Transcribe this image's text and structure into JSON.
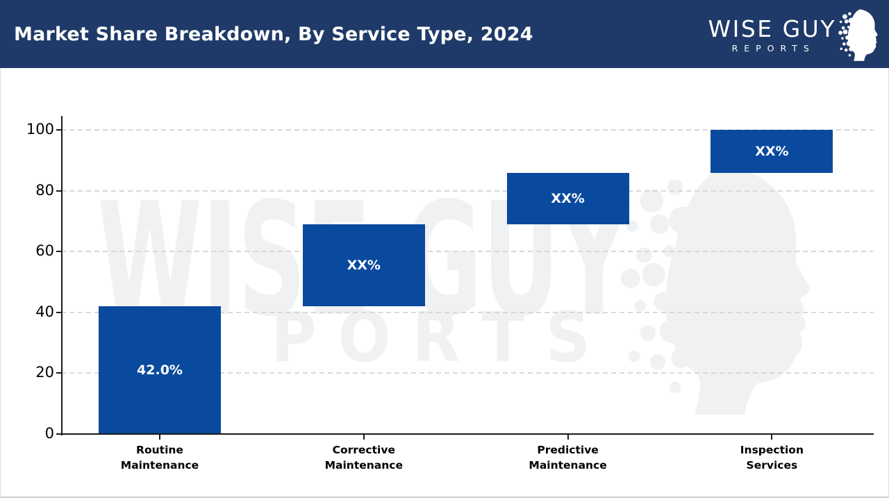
{
  "header": {
    "title": "Market Share Breakdown, By Service Type, 2024",
    "logo": {
      "line1": "WISE GUY",
      "line2": "REPORTS"
    }
  },
  "watermark": {
    "line1": "WISE GUY",
    "line2": "P O R T S"
  },
  "chart_data": {
    "type": "bar",
    "subtype": "waterfall",
    "title": "Market Share Breakdown, By Service Type, 2024",
    "categories": [
      "Routine\nMaintenance",
      "Corrective\nMaintenance",
      "Predictive\nMaintenance",
      "Inspection\nServices"
    ],
    "series": [
      {
        "name": "Market Share %",
        "segments": [
          {
            "category": "Routine Maintenance",
            "start": 0,
            "end": 42,
            "label": "42.0%"
          },
          {
            "category": "Corrective Maintenance",
            "start": 42,
            "end": 69,
            "label": "XX%"
          },
          {
            "category": "Predictive Maintenance",
            "start": 69,
            "end": 86,
            "label": "XX%"
          },
          {
            "category": "Inspection Services",
            "start": 86,
            "end": 100,
            "label": "XX%"
          }
        ]
      }
    ],
    "xlabel": "",
    "ylabel": "",
    "ylim": [
      0,
      105
    ],
    "yticks": [
      0,
      20,
      40,
      60,
      80,
      100
    ],
    "grid": "horizontal-dashed",
    "legend": "none",
    "colors": {
      "bar": "#0a4a9e",
      "bar_label": "#ffffff",
      "header_bg": "#1f3a68",
      "gridline": "#d8d8d8",
      "axis": "#1a1a1a",
      "watermark": "#f0f1f3"
    }
  }
}
